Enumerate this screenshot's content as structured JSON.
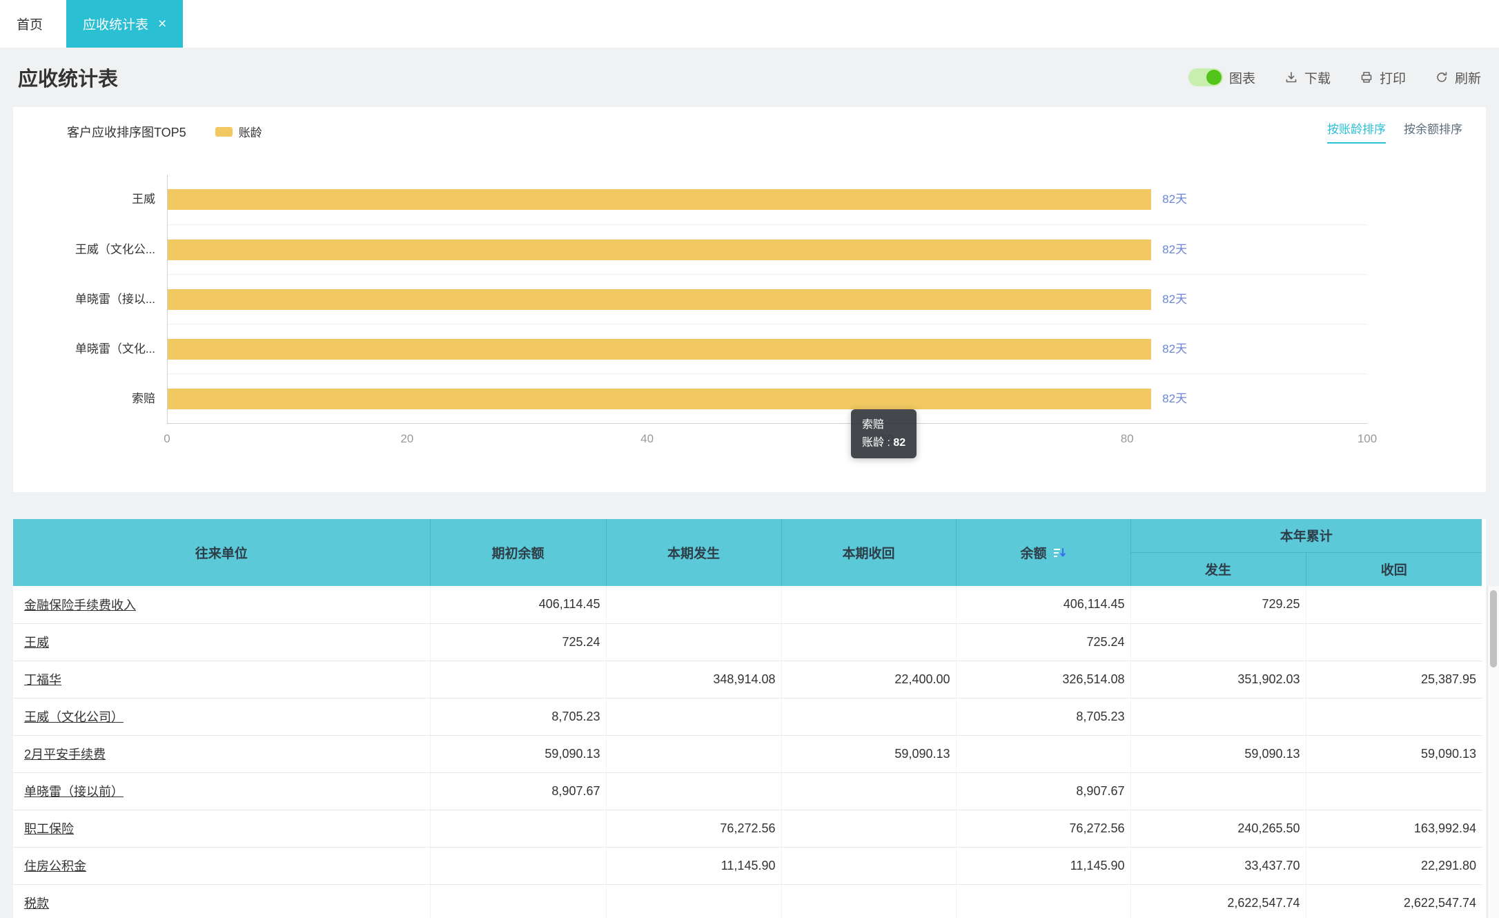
{
  "colors": {
    "accent_teal": "#2bbfd4",
    "table_header_teal": "#5bc9d8",
    "bar_yellow": "#f2c862",
    "toggle_green": "#52c41a"
  },
  "tabbar": {
    "tabs": [
      {
        "label": "首页",
        "active": false
      },
      {
        "label": "应收统计表",
        "active": true,
        "close": "×"
      }
    ]
  },
  "toolbar": {
    "title": "应收统计表",
    "chart_toggle_label": "图表",
    "toggle_on": true,
    "download_label": "下载",
    "print_label": "打印",
    "refresh_label": "刷新"
  },
  "chart_data": {
    "type": "bar",
    "orientation": "horizontal",
    "title": "客户应收排序图TOP5",
    "legend_label": "账龄",
    "legend_position": "top",
    "grid": true,
    "sort_tabs": [
      {
        "label": "按账龄排序",
        "active": true
      },
      {
        "label": "按余额排序",
        "active": false
      }
    ],
    "categories": [
      "王威",
      "王威（文化公...",
      "单晓雷（接以...",
      "单晓雷（文化...",
      "索赔"
    ],
    "values": [
      82,
      82,
      82,
      82,
      82
    ],
    "value_labels": [
      "82天",
      "82天",
      "82天",
      "82天",
      "82天"
    ],
    "xlim": [
      0,
      100
    ],
    "x_ticks": [
      "0",
      "20",
      "40",
      "60",
      "80",
      "100"
    ],
    "xlabel": "",
    "ylabel": "",
    "tooltip": {
      "title": "索赔",
      "label": "账龄 :",
      "value": "82"
    }
  },
  "table": {
    "col_headers": [
      "往来单位",
      "期初余额",
      "本期发生",
      "本期收回",
      "余额"
    ],
    "group_header": {
      "label": "本年累计",
      "children": [
        "发生",
        "收回"
      ]
    },
    "rows": [
      [
        "金融保险手续费收入",
        "406,114.45",
        "",
        "",
        "406,114.45",
        "729.25",
        ""
      ],
      [
        "王威",
        "725.24",
        "",
        "",
        "725.24",
        "",
        ""
      ],
      [
        "丁福华",
        "",
        "348,914.08",
        "22,400.00",
        "326,514.08",
        "351,902.03",
        "25,387.95"
      ],
      [
        "王威（文化公司）",
        "8,705.23",
        "",
        "",
        "8,705.23",
        "",
        ""
      ],
      [
        "2月平安手续费",
        "59,090.13",
        "",
        "59,090.13",
        "",
        "59,090.13",
        "59,090.13"
      ],
      [
        "单晓雷（接以前）",
        "8,907.67",
        "",
        "",
        "8,907.67",
        "",
        ""
      ],
      [
        "职工保险",
        "",
        "76,272.56",
        "",
        "76,272.56",
        "240,265.50",
        "163,992.94"
      ],
      [
        "住房公积金",
        "",
        "11,145.90",
        "",
        "11,145.90",
        "33,437.70",
        "22,291.80"
      ],
      [
        "税款",
        "",
        "",
        "",
        "",
        "2,622,547.74",
        "2,622,547.74"
      ]
    ]
  }
}
